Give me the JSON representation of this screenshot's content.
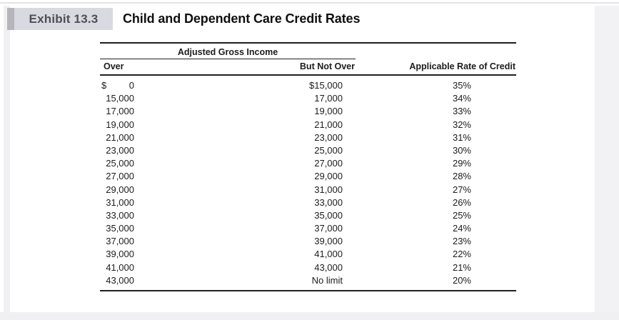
{
  "exhibit": {
    "label": "Exhibit 13.3",
    "title": "Child and Dependent Care Credit Rates"
  },
  "table": {
    "group_header": "Adjusted Gross Income",
    "columns": [
      "Over",
      "But Not Over",
      "Applicable Rate of Credit"
    ],
    "rows": [
      {
        "over_prefix": "$",
        "over": "0",
        "but_not_over": "$15,000",
        "rate": "35%"
      },
      {
        "over_prefix": "",
        "over": "15,000",
        "but_not_over": "17,000",
        "rate": "34%"
      },
      {
        "over_prefix": "",
        "over": "17,000",
        "but_not_over": "19,000",
        "rate": "33%"
      },
      {
        "over_prefix": "",
        "over": "19,000",
        "but_not_over": "21,000",
        "rate": "32%"
      },
      {
        "over_prefix": "",
        "over": "21,000",
        "but_not_over": "23,000",
        "rate": "31%"
      },
      {
        "over_prefix": "",
        "over": "23,000",
        "but_not_over": "25,000",
        "rate": "30%"
      },
      {
        "over_prefix": "",
        "over": "25,000",
        "but_not_over": "27,000",
        "rate": "29%"
      },
      {
        "over_prefix": "",
        "over": "27,000",
        "but_not_over": "29,000",
        "rate": "28%"
      },
      {
        "over_prefix": "",
        "over": "29,000",
        "but_not_over": "31,000",
        "rate": "27%"
      },
      {
        "over_prefix": "",
        "over": "31,000",
        "but_not_over": "33,000",
        "rate": "26%"
      },
      {
        "over_prefix": "",
        "over": "33,000",
        "but_not_over": "35,000",
        "rate": "25%"
      },
      {
        "over_prefix": "",
        "over": "35,000",
        "but_not_over": "37,000",
        "rate": "24%"
      },
      {
        "over_prefix": "",
        "over": "37,000",
        "but_not_over": "39,000",
        "rate": "23%"
      },
      {
        "over_prefix": "",
        "over": "39,000",
        "but_not_over": "41,000",
        "rate": "22%"
      },
      {
        "over_prefix": "",
        "over": "41,000",
        "but_not_over": "43,000",
        "rate": "21%"
      },
      {
        "over_prefix": "",
        "over": "43,000",
        "but_not_over": "No limit",
        "rate": "20%"
      }
    ]
  },
  "colors": {
    "exhibit_box_bg": "#d9dae1",
    "exhibit_text": "#4e4f55",
    "accent_bar": "#b6b6ba",
    "rule": "#1f1f1f",
    "frame_gray": "#f0f0f2"
  }
}
